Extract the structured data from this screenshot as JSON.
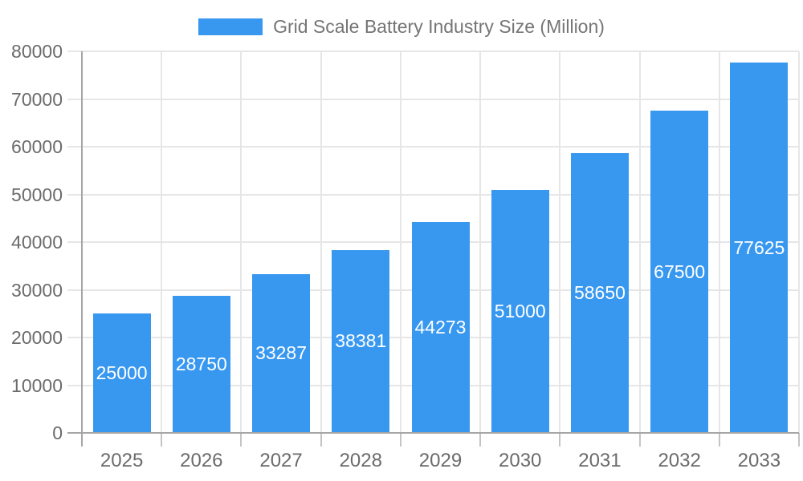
{
  "chart_data": {
    "type": "bar",
    "title": "Grid Scale Battery Industry Size (Million)",
    "legend_label": "Grid Scale Battery Industry Size (Million)",
    "legend_position": "top",
    "categories": [
      "2025",
      "2026",
      "2027",
      "2028",
      "2029",
      "2030",
      "2031",
      "2032",
      "2033"
    ],
    "values": [
      25000,
      28750,
      33287,
      38381,
      44273,
      51000,
      58650,
      67500,
      77625
    ],
    "value_labels": [
      "25000",
      "28750",
      "33287",
      "38381",
      "44273",
      "51000",
      "58650",
      "67500",
      "77625"
    ],
    "xlabel": "",
    "ylabel": "",
    "ylim": [
      0,
      80000
    ],
    "ytick_interval": 10000,
    "ytick_labels": [
      "0",
      "10000",
      "20000",
      "30000",
      "40000",
      "50000",
      "60000",
      "70000",
      "80000"
    ],
    "grid": true,
    "colors": {
      "bar": "#3898f0",
      "value_text": "#ffffff",
      "gridline": "#e6e6e6",
      "axis": "#a6a6a6",
      "tick": "#c4c4c4",
      "axis_label": "#6b6b6b",
      "legend_text": "#757575",
      "background": "#ffffff"
    }
  }
}
